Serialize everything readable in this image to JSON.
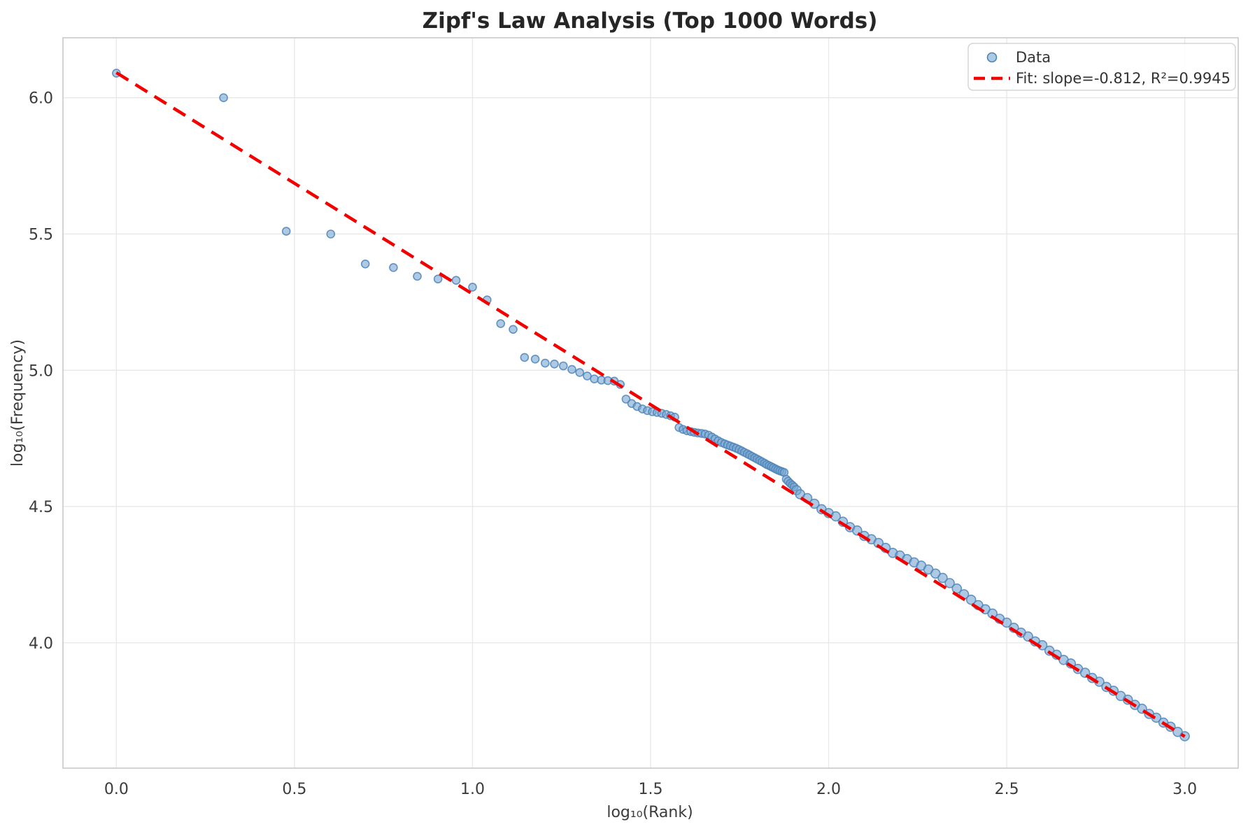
{
  "page": {
    "background": "#ffffff"
  },
  "chart_data": {
    "type": "scatter",
    "title": "Zipf's Law Analysis (Top 1000 Words)",
    "xlabel": "log₁₀(Rank)",
    "ylabel": "log₁₀(Frequency)",
    "xlim": [
      -0.15,
      3.15
    ],
    "ylim": [
      3.54,
      6.22
    ],
    "xticks": [
      0.0,
      0.5,
      1.0,
      1.5,
      2.0,
      2.5,
      3.0
    ],
    "yticks": [
      4.0,
      4.5,
      5.0,
      5.5,
      6.0
    ],
    "grid": true,
    "grid_color": "#e8e8e8",
    "spine_color": "#c9c9c9",
    "legend_position": "upper right",
    "marker": {
      "radius": 5.5,
      "dense_radius": 6.5,
      "dense_from_x": 1.91
    },
    "series": [
      {
        "name": "Data",
        "type": "scatter",
        "color": "#77a5d1",
        "edge_color": "#4d84b8",
        "opacity": 0.6,
        "points": [
          [
            0.0,
            6.09
          ],
          [
            0.301,
            6.0
          ],
          [
            0.477,
            5.51
          ],
          [
            0.602,
            5.5
          ],
          [
            0.699,
            5.39
          ],
          [
            0.778,
            5.377
          ],
          [
            0.845,
            5.345
          ],
          [
            0.903,
            5.335
          ],
          [
            0.954,
            5.33
          ],
          [
            1.0,
            5.305
          ],
          [
            1.041,
            5.258
          ],
          [
            1.079,
            5.171
          ],
          [
            1.114,
            5.15
          ],
          [
            1.146,
            5.047
          ],
          [
            1.176,
            5.041
          ],
          [
            1.204,
            5.026
          ],
          [
            1.23,
            5.023
          ],
          [
            1.255,
            5.016
          ],
          [
            1.279,
            5.003
          ],
          [
            1.301,
            4.992
          ],
          [
            1.322,
            4.979
          ],
          [
            1.342,
            4.968
          ],
          [
            1.362,
            4.964
          ],
          [
            1.38,
            4.962
          ],
          [
            1.398,
            4.96
          ],
          [
            1.415,
            4.948
          ],
          [
            1.431,
            4.894
          ],
          [
            1.447,
            4.878
          ],
          [
            1.462,
            4.867
          ],
          [
            1.477,
            4.858
          ],
          [
            1.491,
            4.852
          ],
          [
            1.505,
            4.848
          ],
          [
            1.518,
            4.845
          ],
          [
            1.531,
            4.842
          ],
          [
            1.544,
            4.838
          ],
          [
            1.556,
            4.833
          ],
          [
            1.568,
            4.828
          ],
          [
            1.58,
            4.79
          ],
          [
            1.591,
            4.783
          ],
          [
            1.602,
            4.778
          ],
          [
            1.613,
            4.775
          ],
          [
            1.623,
            4.772
          ],
          [
            1.633,
            4.77
          ],
          [
            1.643,
            4.768
          ],
          [
            1.653,
            4.766
          ],
          [
            1.663,
            4.762
          ],
          [
            1.672,
            4.755
          ],
          [
            1.681,
            4.748
          ],
          [
            1.69,
            4.741
          ],
          [
            1.699,
            4.735
          ],
          [
            1.708,
            4.73
          ],
          [
            1.716,
            4.726
          ],
          [
            1.724,
            4.722
          ],
          [
            1.732,
            4.718
          ],
          [
            1.74,
            4.714
          ],
          [
            1.748,
            4.709
          ],
          [
            1.756,
            4.704
          ],
          [
            1.763,
            4.699
          ],
          [
            1.771,
            4.694
          ],
          [
            1.778,
            4.689
          ],
          [
            1.785,
            4.684
          ],
          [
            1.792,
            4.679
          ],
          [
            1.799,
            4.674
          ],
          [
            1.806,
            4.669
          ],
          [
            1.813,
            4.664
          ],
          [
            1.82,
            4.659
          ],
          [
            1.826,
            4.654
          ],
          [
            1.833,
            4.65
          ],
          [
            1.839,
            4.646
          ],
          [
            1.845,
            4.642
          ],
          [
            1.851,
            4.638
          ],
          [
            1.857,
            4.634
          ],
          [
            1.863,
            4.631
          ],
          [
            1.869,
            4.628
          ],
          [
            1.875,
            4.625
          ],
          [
            1.881,
            4.6
          ],
          [
            1.886,
            4.593
          ],
          [
            1.892,
            4.585
          ],
          [
            1.898,
            4.578
          ],
          [
            1.903,
            4.572
          ],
          [
            1.91,
            4.56
          ],
          [
            1.92,
            4.545
          ],
          [
            1.94,
            4.531
          ],
          [
            1.96,
            4.51
          ],
          [
            1.98,
            4.49
          ],
          [
            2.0,
            4.476
          ],
          [
            2.02,
            4.464
          ],
          [
            2.04,
            4.444
          ],
          [
            2.06,
            4.424
          ],
          [
            2.08,
            4.412
          ],
          [
            2.1,
            4.392
          ],
          [
            2.12,
            4.38
          ],
          [
            2.14,
            4.366
          ],
          [
            2.16,
            4.348
          ],
          [
            2.18,
            4.33
          ],
          [
            2.2,
            4.32
          ],
          [
            2.22,
            4.307
          ],
          [
            2.24,
            4.295
          ],
          [
            2.26,
            4.283
          ],
          [
            2.28,
            4.269
          ],
          [
            2.3,
            4.254
          ],
          [
            2.32,
            4.238
          ],
          [
            2.34,
            4.219
          ],
          [
            2.36,
            4.199
          ],
          [
            2.38,
            4.178
          ],
          [
            2.4,
            4.158
          ],
          [
            2.42,
            4.138
          ],
          [
            2.44,
            4.123
          ],
          [
            2.46,
            4.107
          ],
          [
            2.48,
            4.088
          ],
          [
            2.5,
            4.074
          ],
          [
            2.52,
            4.055
          ],
          [
            2.54,
            4.037
          ],
          [
            2.56,
            4.023
          ],
          [
            2.58,
            4.005
          ],
          [
            2.6,
            3.991
          ],
          [
            2.62,
            3.971
          ],
          [
            2.64,
            3.956
          ],
          [
            2.66,
            3.937
          ],
          [
            2.68,
            3.924
          ],
          [
            2.7,
            3.904
          ],
          [
            2.72,
            3.89
          ],
          [
            2.74,
            3.871
          ],
          [
            2.76,
            3.857
          ],
          [
            2.78,
            3.838
          ],
          [
            2.8,
            3.824
          ],
          [
            2.82,
            3.805
          ],
          [
            2.84,
            3.791
          ],
          [
            2.86,
            3.772
          ],
          [
            2.88,
            3.758
          ],
          [
            2.9,
            3.739
          ],
          [
            2.92,
            3.725
          ],
          [
            2.94,
            3.707
          ],
          [
            2.96,
            3.692
          ],
          [
            2.98,
            3.673
          ],
          [
            3.0,
            3.657
          ]
        ]
      }
    ],
    "fit": {
      "label": "Fit: slope=-0.812, R²=0.9945",
      "slope": -0.812,
      "intercept": 6.092,
      "r_squared": 0.9945,
      "x_start": 0.0,
      "x_end": 3.0,
      "color": "#f40000",
      "style": "dashed",
      "line_width": 4.5,
      "dash_pattern": [
        20,
        12
      ]
    }
  },
  "legend": {
    "data_label": "Data",
    "fit_label": "Fit: slope=-0.812, R²=0.9945"
  }
}
